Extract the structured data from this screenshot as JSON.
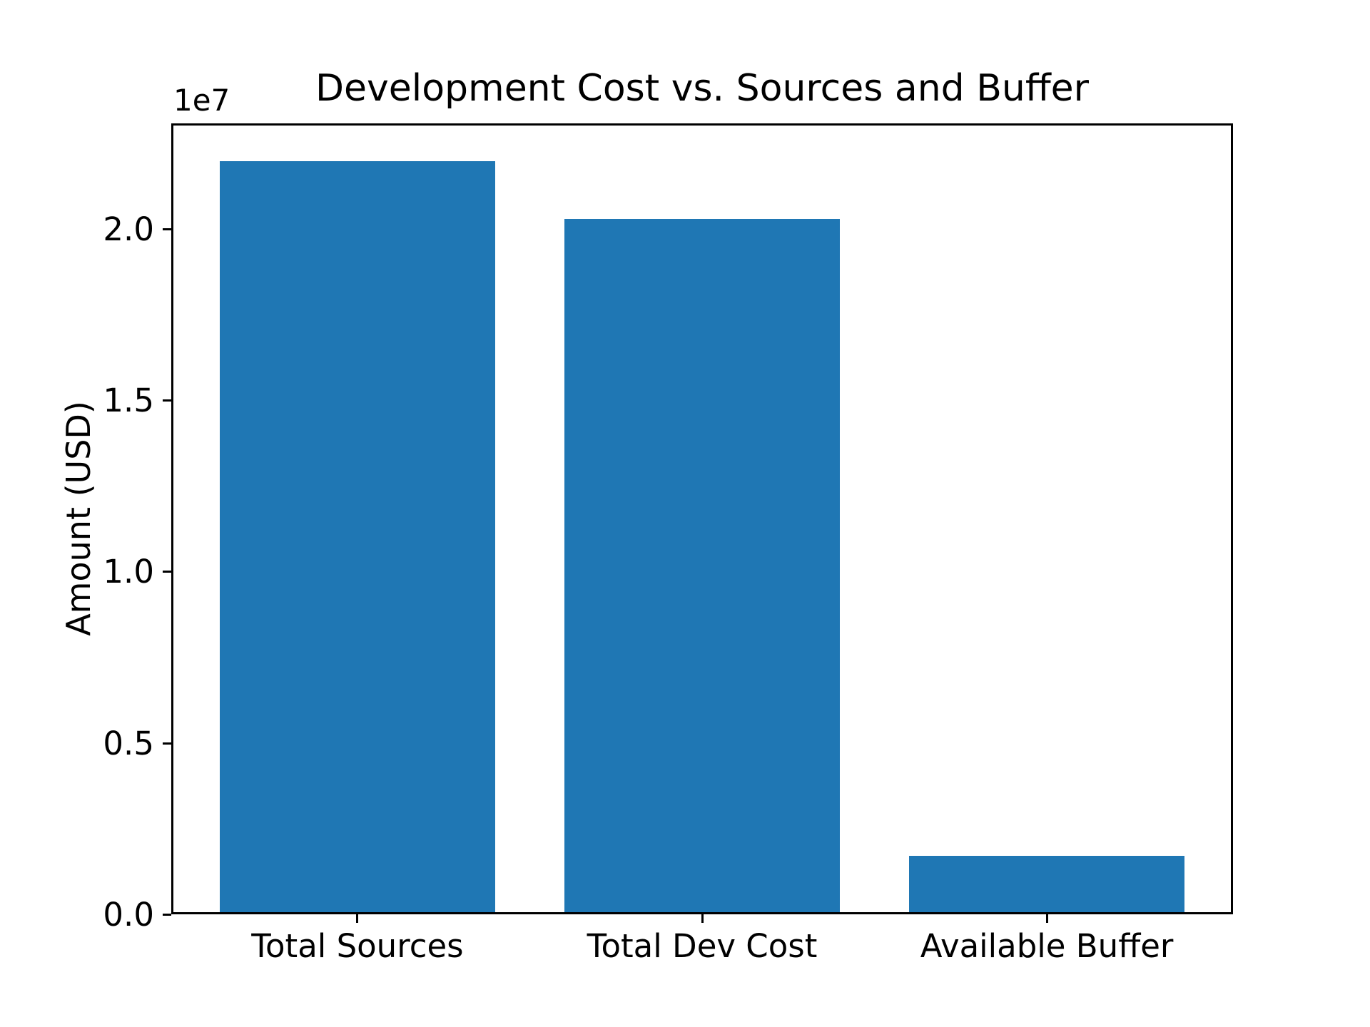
{
  "chart_data": {
    "type": "bar",
    "title": "Development Cost vs. Sources and Buffer",
    "xlabel": "",
    "ylabel": "Amount (USD)",
    "scale_factor_label": "1e7",
    "categories": [
      "Total Sources",
      "Total Dev Cost",
      "Available Buffer"
    ],
    "values": [
      22000000,
      20300000,
      1700000
    ],
    "ylim": [
      0,
      23100000
    ],
    "yticks": [
      0,
      5000000,
      10000000,
      15000000,
      20000000
    ],
    "ytick_labels": [
      "0.0",
      "0.5",
      "1.0",
      "1.5",
      "2.0"
    ],
    "bar_width_fraction": 0.8,
    "grid": false,
    "legend": false,
    "colors": {
      "bar": "#1f77b4",
      "axis": "#000000",
      "text": "#000000",
      "background": "#ffffff"
    }
  }
}
